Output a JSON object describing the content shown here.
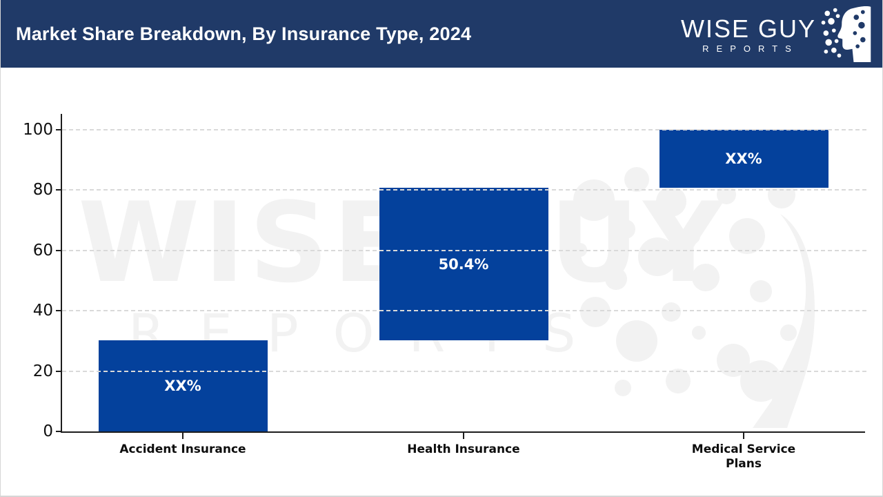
{
  "header": {
    "title": "Market Share Breakdown, By Insurance Type, 2024",
    "logo": {
      "line1": "WISE GUY",
      "line2": "REPORTS"
    }
  },
  "watermark": {
    "line1": "WISE GUY",
    "line2": "REPORTS"
  },
  "colors": {
    "header_background": "#203a68",
    "bar_blue": "#04419C",
    "gridline": "#d9d9d9",
    "watermark_gray": "#f2f2f2",
    "axis_black": "#1c1c1c"
  },
  "chart_data": {
    "type": "bar",
    "subtype": "floating-segment (waterfall-style) vertical bars",
    "title": "Market Share Breakdown, By Insurance Type, 2024",
    "categories": [
      "Accident Insurance",
      "Health Insurance",
      "Medical Service Plans"
    ],
    "category_label_display": [
      "Accident Insurance",
      "Health Insurance",
      "Medical Service\nPlans"
    ],
    "segments": [
      {
        "category": "Accident Insurance",
        "start": 0,
        "end": 30.2,
        "label": "XX%"
      },
      {
        "category": "Health Insurance",
        "start": 30.2,
        "end": 80.6,
        "label": "50.4%"
      },
      {
        "category": "Medical Service Plans",
        "start": 80.6,
        "end": 100,
        "label": "XX%"
      }
    ],
    "yticks": [
      0,
      20,
      40,
      60,
      80,
      100
    ],
    "ylim": [
      0,
      104
    ],
    "xlabel": "",
    "ylabel": "",
    "grid": {
      "horizontal": true,
      "style": "dashed",
      "drawn_above_bars": true
    },
    "legend": "none",
    "bar_color": "#04419C",
    "value_label_color": "#ffffff"
  }
}
